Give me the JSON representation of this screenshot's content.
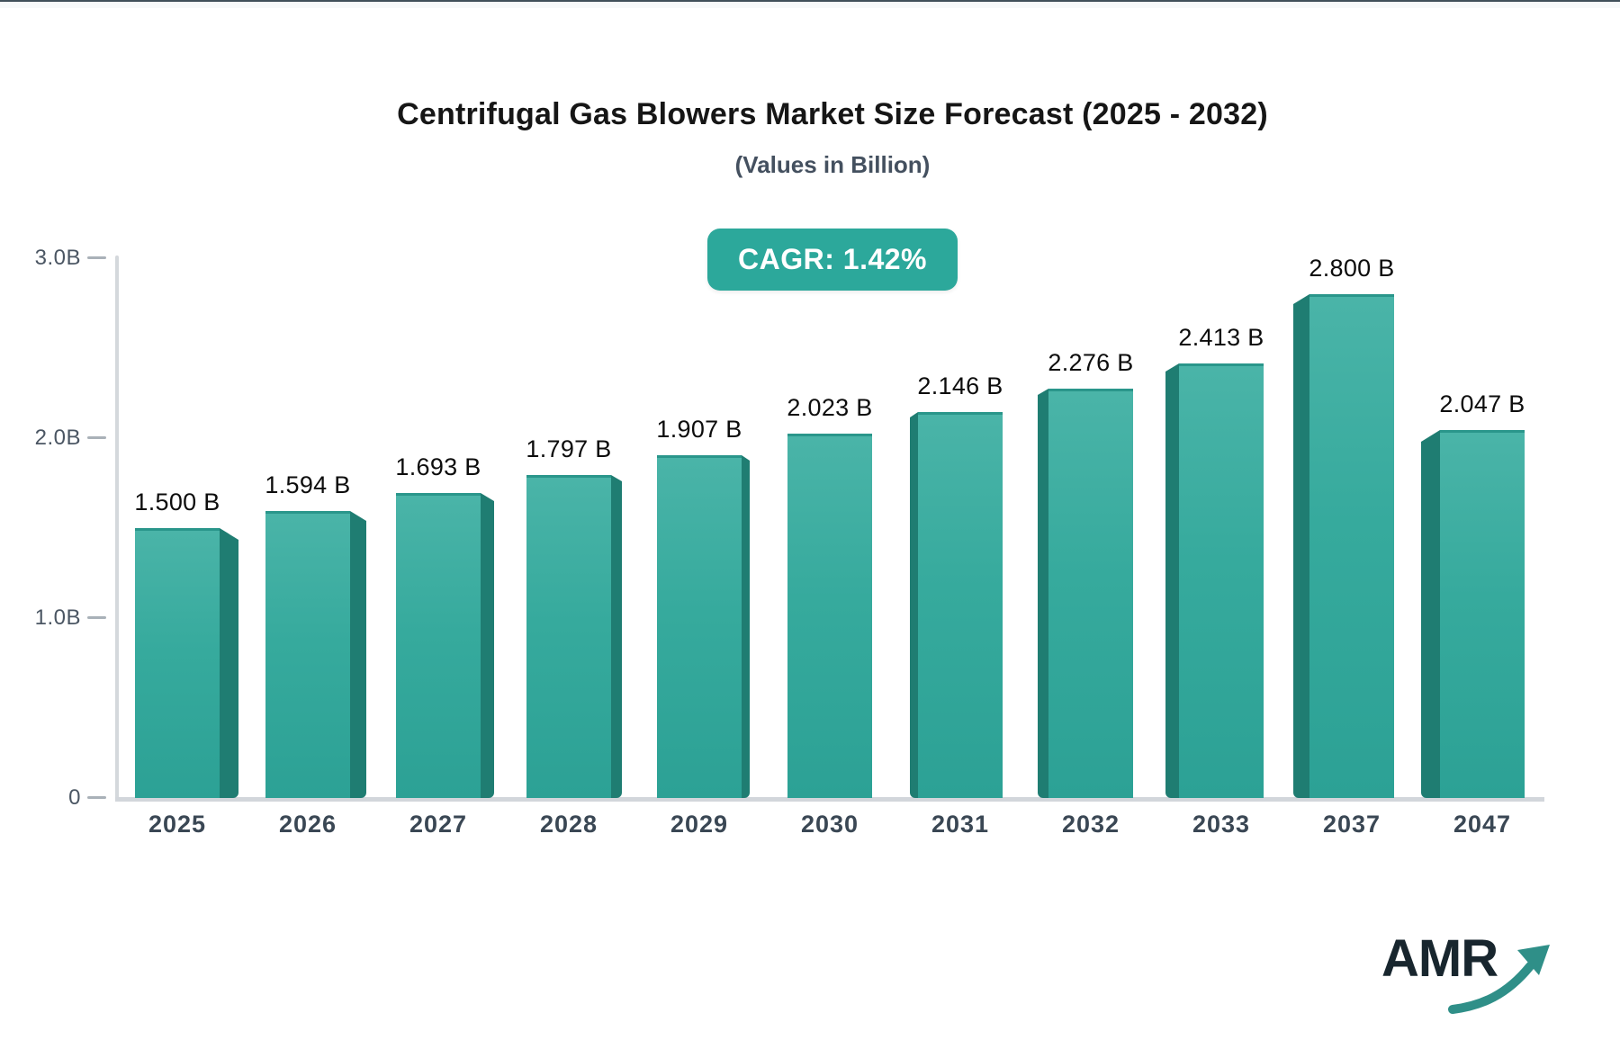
{
  "title": "Centrifugal Gas Blowers Market Size Forecast (2025 - 2032)",
  "subtitle": "(Values in Billion)",
  "badge": {
    "label": "CAGR: 1.42%"
  },
  "chart_data": {
    "type": "bar",
    "title": "Centrifugal Gas Blowers Market Size Forecast (2025 - 2032)",
    "subtitle": "(Values in Billion)",
    "annotation": "CAGR: 1.42%",
    "categories": [
      "2025",
      "2026",
      "2027",
      "2028",
      "2029",
      "2030",
      "2031",
      "2032",
      "2033",
      "2037",
      "2047"
    ],
    "values": [
      1.5,
      1.594,
      1.693,
      1.797,
      1.907,
      2.023,
      2.146,
      2.276,
      2.413,
      2.8,
      2.047
    ],
    "value_labels": [
      "1.500 B",
      "1.594 B",
      "1.693 B",
      "1.797 B",
      "1.907 B",
      "2.023 B",
      "2.146 B",
      "2.276 B",
      "2.413 B",
      "2.800 B",
      "2.047 B"
    ],
    "xlabel": "",
    "ylabel": "",
    "ylim": [
      0,
      3.0
    ],
    "yticks": [
      {
        "label": "3.0B",
        "value": 3.0
      },
      {
        "label": "2.0B",
        "value": 2.0
      },
      {
        "label": "1.0B",
        "value": 1.0
      },
      {
        "label": "0",
        "value": 0.0
      }
    ],
    "grid": "off",
    "legend": "none",
    "bar_style": "3d-extruded",
    "colors": {
      "bar_face_top": "#4ab4a8",
      "bar_face_bottom": "#2ca195",
      "bar_top_edge": "#2a968b",
      "bar_side_face": "#1f7d72",
      "axis_line": "#d2d6db",
      "tick_label": "#4b5663",
      "category_label": "#3a4754",
      "value_label": "#0d0d0d",
      "badge_background": "#2ca89b",
      "badge_text": "#ffffff"
    }
  },
  "logo": {
    "text": "AMR",
    "arrow_icon": "growth-arrow-icon",
    "arrow_color": "#2f8f88"
  }
}
